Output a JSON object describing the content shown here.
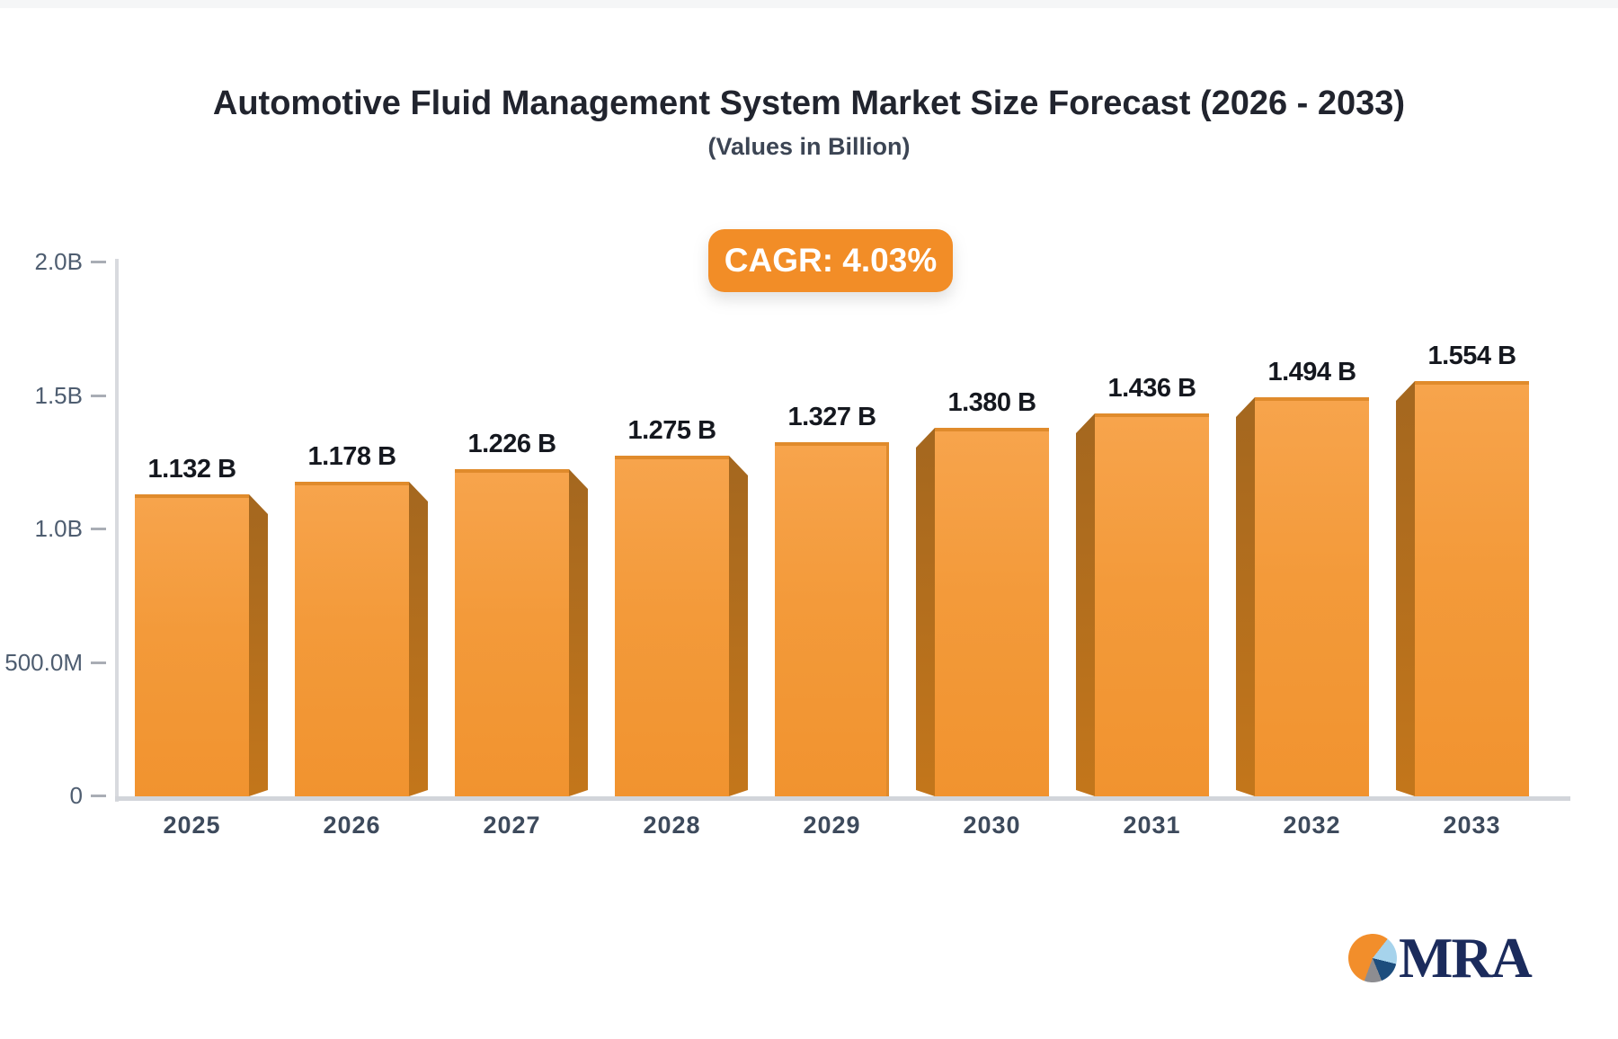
{
  "page": {
    "background_color": "#ffffff",
    "top_strip_color": "#f5f6f7"
  },
  "header": {
    "title": "Automotive Fluid Management System Market Size Forecast (2026 - 2033)",
    "subtitle": "(Values in Billion)"
  },
  "badge": {
    "label": "CAGR: 4.03%",
    "color": "#f28d27",
    "text_color": "#ffffff"
  },
  "chart_data": {
    "type": "bar",
    "title": "Automotive Fluid Management System Market Size Forecast (2026 - 2033)",
    "subtitle": "(Values in Billion)",
    "cagr_percent": 4.03,
    "categories": [
      "2025",
      "2026",
      "2027",
      "2028",
      "2029",
      "2030",
      "2031",
      "2032",
      "2033"
    ],
    "values": [
      1.132,
      1.178,
      1.226,
      1.275,
      1.327,
      1.38,
      1.436,
      1.494,
      1.554
    ],
    "value_labels": [
      "1.132 B",
      "1.178 B",
      "1.226 B",
      "1.275 B",
      "1.327 B",
      "1.380 B",
      "1.436 B",
      "1.494 B",
      "1.554 B"
    ],
    "unit": "Billion",
    "xlabel": "",
    "ylabel": "",
    "ylim": [
      0,
      2.0
    ],
    "ytick_labels": [
      "2.0B",
      "1.5B",
      "1.0B",
      "500.0M",
      "0"
    ],
    "ytick_values": [
      2.0,
      1.5,
      1.0,
      0.5,
      0
    ],
    "grid": "off",
    "legend": "none",
    "bar_style": "3d",
    "bar_face_color": "#f39a3a",
    "bar_side_color": "#b36f1f",
    "bar_top_edge_color": "#e08b2c",
    "axis_color": "#d2d5da"
  },
  "logo": {
    "text": "MRA",
    "pie_icon_colors": [
      "#f28e2b",
      "#a6d3ec",
      "#1c4d7d",
      "#8d8d91"
    ]
  }
}
